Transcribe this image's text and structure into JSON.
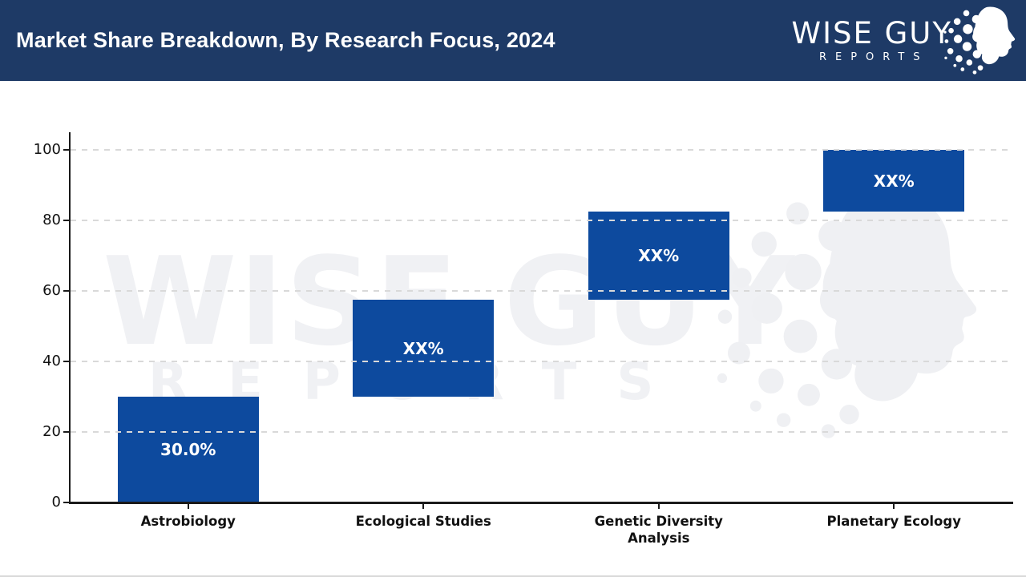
{
  "header": {
    "title": "Market Share Breakdown, By Research Focus, 2024",
    "bg_color": "#1e3a66"
  },
  "brand": {
    "name": "WISE GUY",
    "subtitle": "REPORTS"
  },
  "watermark": {
    "name": "WISE GUY",
    "subtitle": "REPORTS"
  },
  "chart_data": {
    "type": "bar",
    "subtype": "waterfall",
    "title": "Market Share Breakdown, By Research Focus, 2024",
    "categories": [
      "Astrobiology",
      "Ecological Studies",
      "Genetic Diversity\nAnalysis",
      "Planetary Ecology"
    ],
    "segments": [
      {
        "category": "Astrobiology",
        "start": 0,
        "end": 30,
        "label": "30.0%"
      },
      {
        "category": "Ecological Studies",
        "start": 30,
        "end": 57.5,
        "label": "XX%"
      },
      {
        "category": "Genetic Diversity Analysis",
        "start": 57.5,
        "end": 82.5,
        "label": "XX%"
      },
      {
        "category": "Planetary Ecology",
        "start": 82.5,
        "end": 100,
        "label": "XX%"
      }
    ],
    "yticks": [
      0,
      20,
      40,
      60,
      80,
      100
    ],
    "ylim": [
      0,
      105
    ],
    "xlabel": "",
    "ylabel": "",
    "grid": "horizontal-dashed",
    "legend": "none",
    "bar_color": "#0d4a9e",
    "bar_label_color": "#ffffff",
    "grid_color": "#d9d9d9",
    "axis_color": "#1a1a1a"
  }
}
